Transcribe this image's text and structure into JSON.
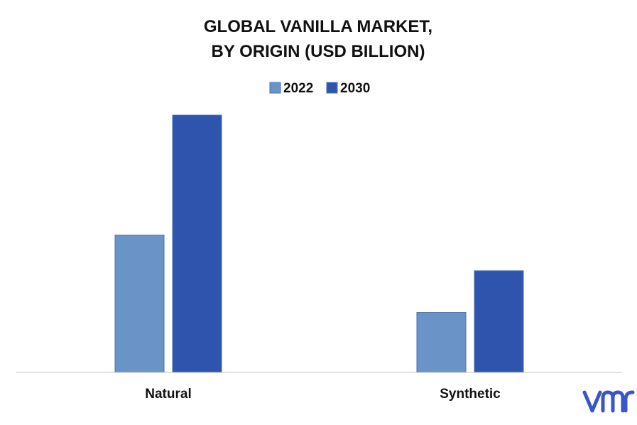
{
  "chart_data": {
    "type": "bar",
    "title_lines": [
      "GLOBAL VANILLA MARKET,",
      "BY ORIGIN (USD BILLION)"
    ],
    "categories": [
      "Natural",
      "Synthetic"
    ],
    "series": [
      {
        "name": "2022",
        "values": [
          1.12,
          0.49
        ]
      },
      {
        "name": "2030",
        "values": [
          2.1,
          0.83
        ]
      }
    ],
    "colors": {
      "2022": "#6a93c8",
      "2030": "#2f54ad"
    },
    "xlabel": "",
    "ylabel": "",
    "ylim": [
      0,
      2.1
    ],
    "grid": false,
    "legend": "top-center",
    "value_labels": false
  },
  "logo": {
    "text": "vmr",
    "color": "#3a55c8"
  }
}
